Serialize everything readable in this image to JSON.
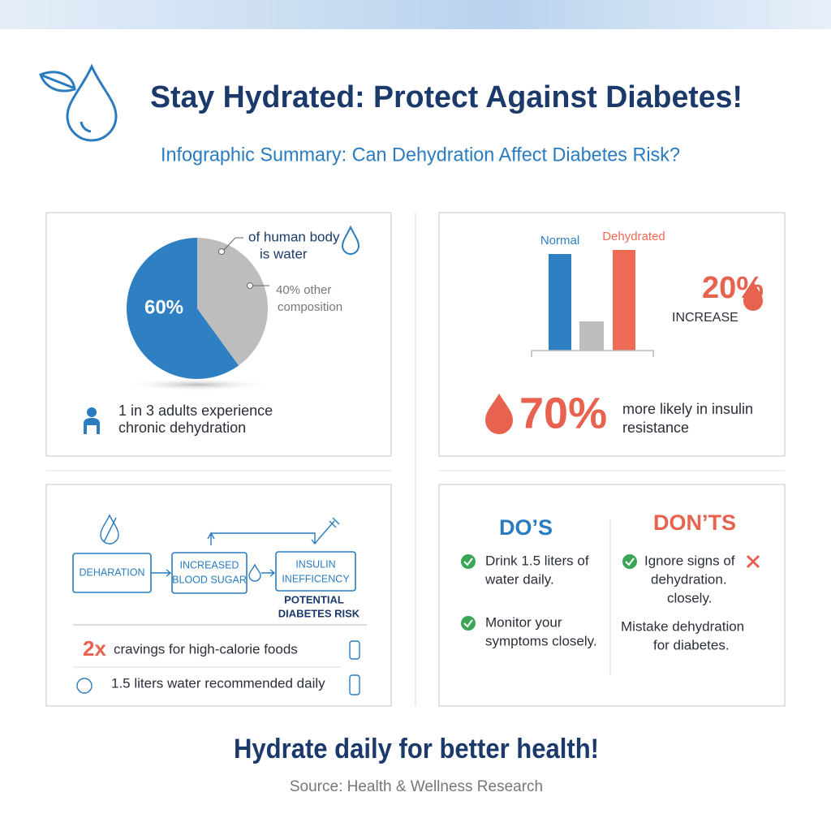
{
  "header": {
    "title": "Stay Hydrated: Protect Against Diabetes!",
    "subtitle": "Infographic Summary: Can Dehydration Affect Diabetes Risk?"
  },
  "pie": {
    "values": [
      60,
      40
    ],
    "colors": [
      "#2f80c3",
      "#bdbdbd"
    ],
    "value_label": "60%",
    "callout": [
      "of human body",
      "is water"
    ],
    "other": [
      "40% other",
      "composition"
    ]
  },
  "adults": [
    "1 in 3 adults experience",
    "chronic dehydration"
  ],
  "bars": {
    "categories": [
      "Normal",
      null,
      "Dehydrated"
    ],
    "values": [
      119,
      36,
      124
    ],
    "colors": [
      "#2f80c3",
      "#bdbdbd",
      "#ee6a55"
    ]
  },
  "increase": {
    "value": "20%",
    "label": "INCREASE"
  },
  "insulin": {
    "value": "70%",
    "text": [
      "more likely in insulin",
      "resistance"
    ]
  },
  "flow": {
    "nodes": [
      [
        "DEHARATION"
      ],
      [
        "INCREASED",
        "BLOOD SUGAR"
      ],
      [
        "INSULIN",
        "INEFFICENCY"
      ]
    ],
    "result": [
      "POTENTIAL",
      "DIABETES RISK"
    ]
  },
  "facts": [
    {
      "value": "2x",
      "text": "cravings for high-calorie foods"
    },
    {
      "text": "1.5 liters water recommended daily"
    }
  ],
  "dos": {
    "title": "DO’S",
    "items": [
      [
        "Drink 1.5 liters of",
        "water daily."
      ],
      [
        "Monitor your",
        "symptoms closely."
      ]
    ]
  },
  "donts": {
    "title": "DON’TS",
    "items": [
      [
        "Ignore signs of",
        "dehydration.",
        "closely."
      ],
      [
        "Mistake dehydration",
        "for diabetes."
      ]
    ]
  },
  "footer": {
    "tagline": "Hydrate daily for better health!",
    "source": "Source: Health & Wellness Research"
  }
}
